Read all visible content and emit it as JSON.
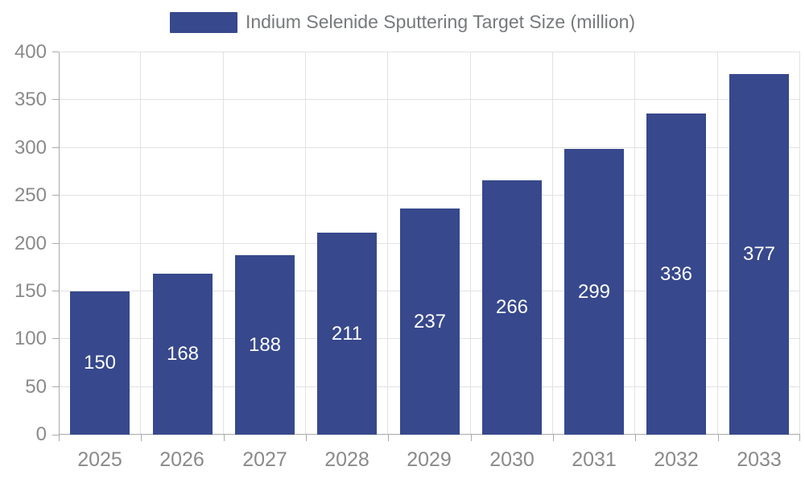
{
  "chart_data": {
    "type": "bar",
    "title": "Indium Selenide Sputtering Target Size (million)",
    "categories": [
      "2025",
      "2026",
      "2027",
      "2028",
      "2029",
      "2030",
      "2031",
      "2032",
      "2033"
    ],
    "values": [
      150,
      168,
      188,
      211,
      237,
      266,
      299,
      336,
      377
    ],
    "xlabel": "",
    "ylabel": "",
    "ylim": [
      0,
      400
    ],
    "ytick_step": 50,
    "yticks": [
      0,
      50,
      100,
      150,
      200,
      250,
      300,
      350,
      400
    ],
    "grid": true,
    "legend_position": "top",
    "value_labels": "inside-center",
    "colors": {
      "bar": "#37488C",
      "bar_value_label": "#ffffff",
      "axis_text": "#8a8a8a",
      "legend_text": "#76797b",
      "grid_line": "#e2e2e2",
      "axis_line": "#aaaaaa"
    }
  }
}
